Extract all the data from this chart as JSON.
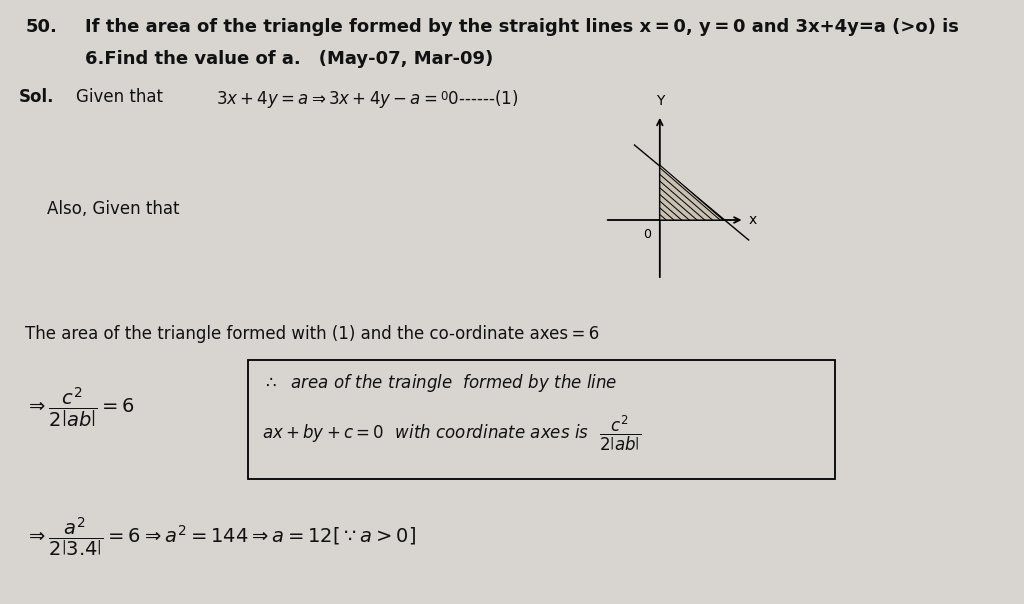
{
  "bg_color": "#d8d5d0",
  "text_color": "#111111",
  "title_num": "50.",
  "title_line1": "If the area of the triangle formed by the straight lines x = 0, y = 0 and 3x+4y=a (>o) is",
  "title_line2": "6.Find the value of a. (May-07, Mar-09)",
  "sol_label": "Sol.",
  "given_label": "Given that",
  "also_given": "Also, Given that",
  "area_text": "The area of the triangle formed with (1) and the co-ordinate axes = 6"
}
